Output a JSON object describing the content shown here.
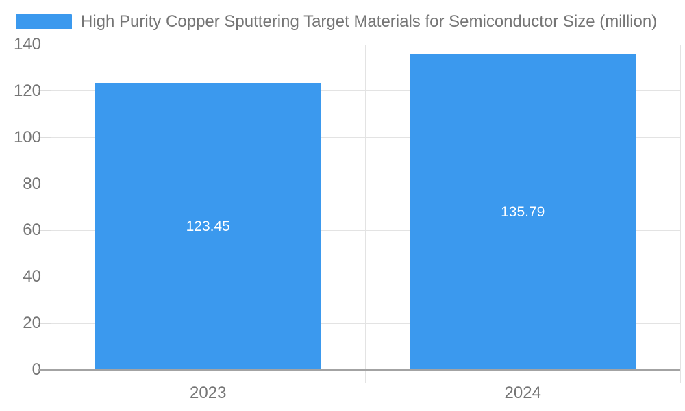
{
  "legend": {
    "label": "High Purity Copper Sputtering Target Materials for Semiconductor Size (million)"
  },
  "chart_data": {
    "type": "bar",
    "title": "High Purity Copper Sputtering Target Materials for Semiconductor Size (million)",
    "categories": [
      "2023",
      "2024"
    ],
    "values": [
      123.45,
      135.79
    ],
    "value_labels": [
      "123.45",
      "135.79"
    ],
    "xlabel": "",
    "ylabel": "",
    "ylim": [
      0,
      140
    ],
    "yticks": [
      0,
      20,
      40,
      60,
      80,
      100,
      120,
      140
    ],
    "grid": true,
    "legend_position": "top-left",
    "colors": {
      "bar": "#3b99ee",
      "value_label": "#ffffff",
      "axis_text": "#757575",
      "axis_line": "#a3a3a3",
      "gridline": "#e3e3e3"
    }
  }
}
